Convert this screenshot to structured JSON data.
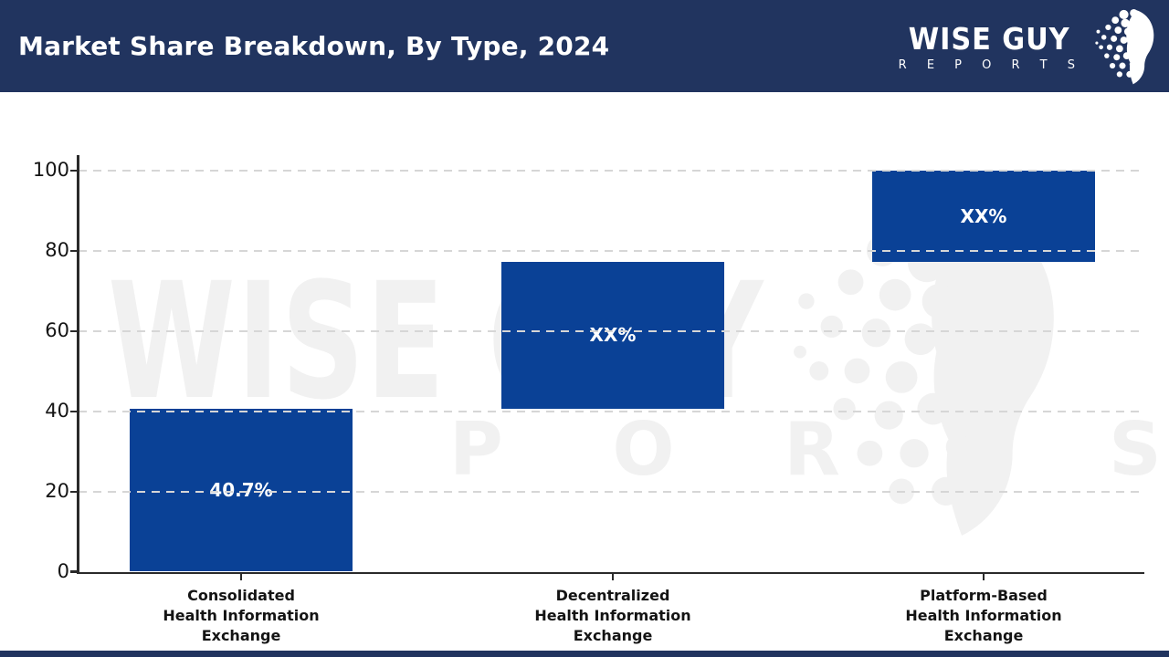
{
  "header": {
    "title": "Market Share Breakdown, By Type, 2024",
    "logo": {
      "wordmark": "WISE GUY",
      "subtext": "R E P O R T S"
    }
  },
  "watermark": {
    "wordmark": "WISE GUY",
    "subtext": "R E P O R T S"
  },
  "chart_data": {
    "type": "bar",
    "subtype": "waterfall",
    "title": "Market Share Breakdown, By Type, 2024",
    "categories": [
      "Consolidated\nHealth Information\nExchange",
      "Decentralized\nHealth Information\nExchange",
      "Platform-Based\nHealth Information\nExchange"
    ],
    "bars": [
      {
        "category": "Consolidated Health Information Exchange",
        "start": 0,
        "end": 40.7,
        "label": "40.7%"
      },
      {
        "category": "Decentralized Health Information Exchange",
        "start": 40.7,
        "end": 77.2,
        "label": "XX%"
      },
      {
        "category": "Platform-Based Health Information Exchange",
        "start": 77.2,
        "end": 100,
        "label": "XX%"
      }
    ],
    "ylim": [
      0,
      100
    ],
    "yticks": [
      0,
      20,
      40,
      60,
      80,
      100
    ],
    "xlabel": "",
    "ylabel": "",
    "grid": "horizontal-dashed",
    "legend": "none"
  },
  "colors": {
    "header_bg": "#21345f",
    "footer_bg": "#21345f",
    "bar": "#0a4196",
    "bar_label": "#ffffff",
    "grid": "#d6d6d6",
    "axis": "#2a2a2a",
    "tick_text": "#141414",
    "watermark": "#f1f1f1",
    "background": "#ffffff"
  }
}
